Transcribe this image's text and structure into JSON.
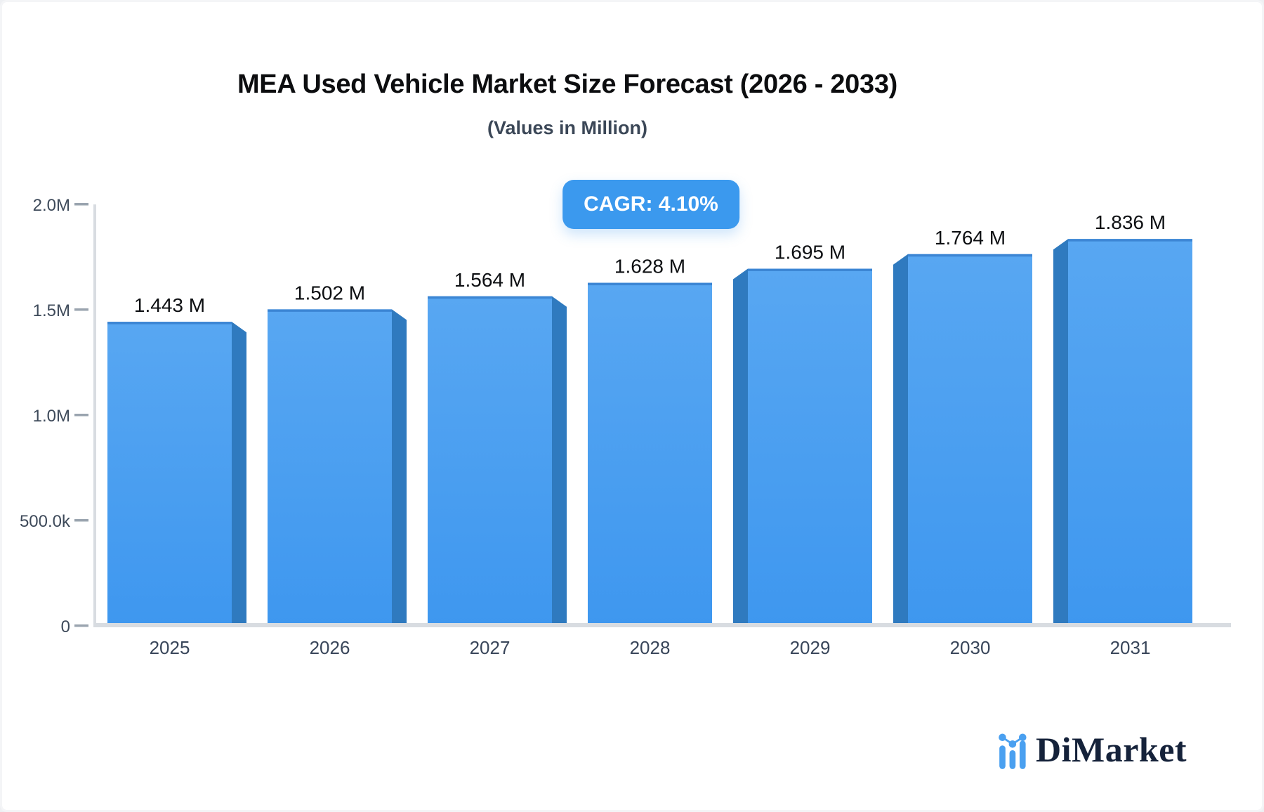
{
  "page": {
    "background": "#eef0f3",
    "card_background": "#ffffff"
  },
  "header": {
    "title": "MEA Used Vehicle Market Size Forecast (2026 - 2033)",
    "subtitle": "(Values in Million)"
  },
  "badge": {
    "label": "CAGR: 4.10%",
    "background": "#3b99ee",
    "text_color": "#ffffff"
  },
  "chart_data": {
    "type": "bar",
    "title": "MEA Used Vehicle Market Size Forecast (2026 - 2033)",
    "subtitle": "(Values in Million)",
    "annotation": "CAGR: 4.10%",
    "categories": [
      "2025",
      "2026",
      "2027",
      "2028",
      "2029",
      "2030",
      "2031"
    ],
    "values": [
      1443000,
      1502000,
      1564000,
      1628000,
      1695000,
      1764000,
      1836000
    ],
    "value_labels": [
      "1.443 M",
      "1.502 M",
      "1.564 M",
      "1.628 M",
      "1.695 M",
      "1.764 M",
      "1.836 M"
    ],
    "xlabel": "",
    "ylabel": "",
    "ylim": [
      0,
      2000000
    ],
    "y_ticks": [
      {
        "value": 2000000,
        "label": "2.0M"
      },
      {
        "value": 1500000,
        "label": "1.5M"
      },
      {
        "value": 1000000,
        "label": "1.0M"
      },
      {
        "value": 500000,
        "label": "500.0k"
      },
      {
        "value": 0,
        "label": "0"
      }
    ],
    "grid": false,
    "legend": false,
    "colors": {
      "bar_top": "#58a7f2",
      "bar_bottom": "#3e97ef",
      "bar_side": "#2f7abf",
      "bar_edge": "#3c86d4",
      "axis": "#d8dce1",
      "tick": "#9aa4af",
      "y_label": "#3e4a5a",
      "x_label": "#39465a",
      "value_label": "#0d0f12"
    }
  },
  "watermark": {
    "brand": "DiMarket",
    "icon": "bar-line-chart-icon",
    "text_color": "#15223a",
    "icon_color": "#4aa0f0"
  }
}
